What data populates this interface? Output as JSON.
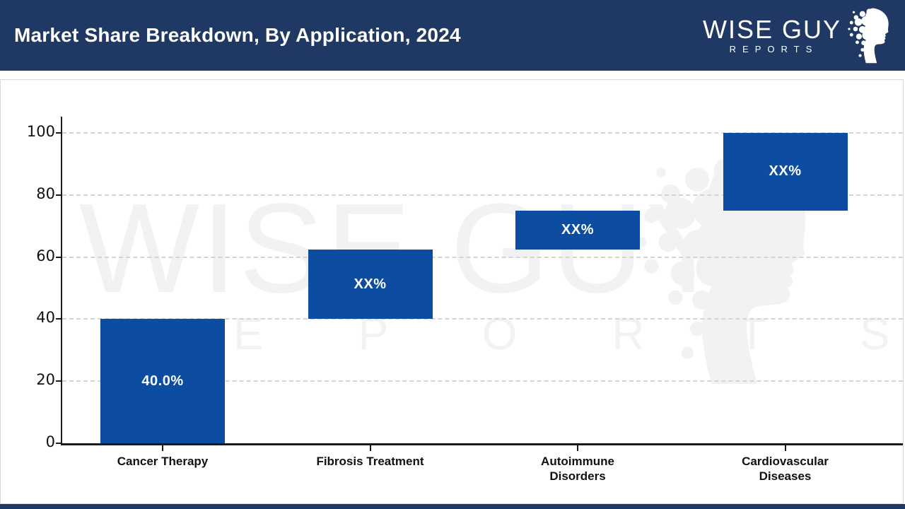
{
  "header": {
    "logo_line1": "WISE GUY",
    "logo_line2": "REPORTS"
  },
  "watermark": {
    "line1": "WISE GUY",
    "line2": "R E P O R T S"
  },
  "colors": {
    "header_navy": "#1F3864",
    "bar_blue": "#0D4DA1",
    "grid_gray": "#D4D4D4",
    "axis_black": "#1A1A1A",
    "panel_border": "#D9D9D9",
    "watermark_gray": "#F2F2F5"
  },
  "chart_data": {
    "type": "bar",
    "subtype": "waterfall",
    "title": "Market Share Breakdown, By Application, 2024",
    "categories": [
      "Cancer Therapy",
      "Fibrosis Treatment",
      "Autoimmune Disorders",
      "Cardiovascular Diseases"
    ],
    "segments": [
      {
        "category": "Cancer Therapy",
        "start": 0,
        "end": 40,
        "label": "40.0%"
      },
      {
        "category": "Fibrosis Treatment",
        "start": 40,
        "end": 62.5,
        "label": "XX%"
      },
      {
        "category": "Autoimmune Disorders",
        "start": 62.5,
        "end": 75,
        "label": "XX%"
      },
      {
        "category": "Cardiovascular Diseases",
        "start": 75,
        "end": 100,
        "label": "XX%"
      }
    ],
    "yticks": [
      0,
      20,
      40,
      60,
      80,
      100
    ],
    "ylim": [
      0,
      105
    ],
    "xlabel": "",
    "ylabel": "",
    "grid": "dashed-horizontal",
    "legend": "none",
    "bar_color": "#0D4DA1"
  }
}
